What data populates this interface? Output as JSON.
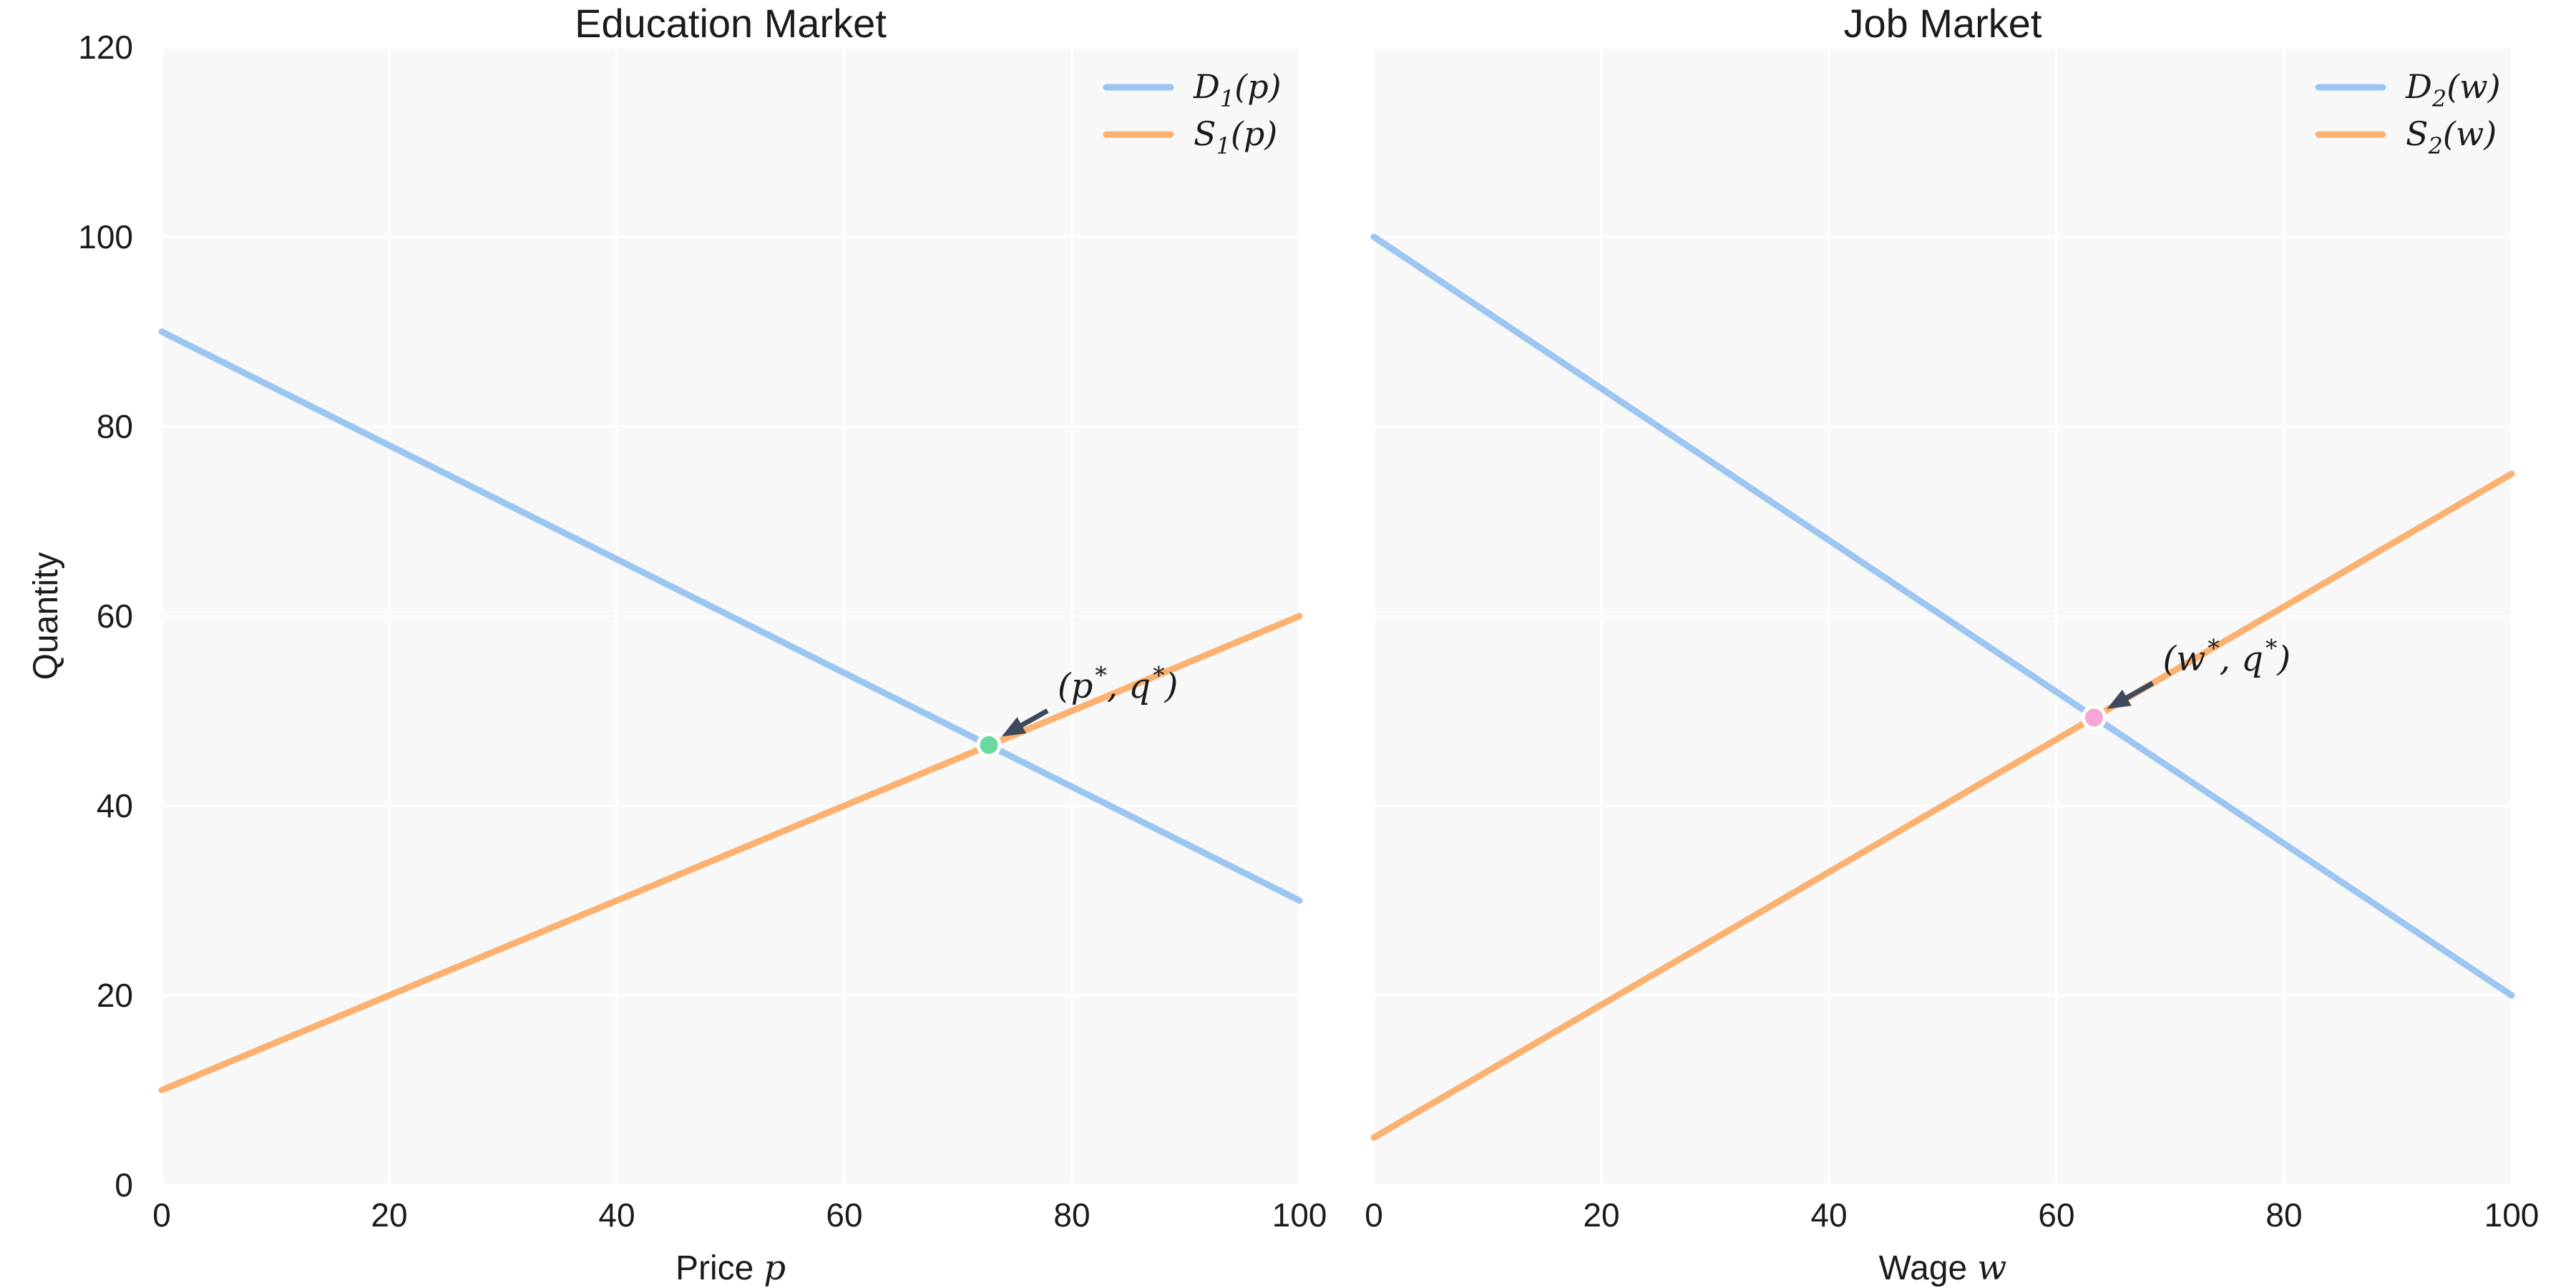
{
  "figure": {
    "bg_color": "#ffffff",
    "axes_bg_color": "#f8f8f8",
    "grid_color": "#ffffff",
    "text_color": "#1b1b1b",
    "arrow_color": "#3e4a5c"
  },
  "chart_data": [
    {
      "type": "line",
      "title": "Education Market",
      "xlabel": {
        "text": "Price",
        "var": "p"
      },
      "ylabel": "Quantity",
      "xlim": [
        0,
        100
      ],
      "ylim": [
        0,
        120
      ],
      "xticks": [
        0,
        20,
        40,
        60,
        80,
        100
      ],
      "yticks": [
        0,
        20,
        40,
        60,
        80,
        100,
        120
      ],
      "show_ytick_labels": true,
      "grid": true,
      "legend_position": "upper right",
      "series": [
        {
          "name": "D1(p)",
          "role": "demand",
          "label_parts": {
            "main": "D",
            "sub": "1",
            "arg": "(p)"
          },
          "color": "#9cc5f2",
          "x": [
            0,
            100
          ],
          "y": [
            90,
            30
          ]
        },
        {
          "name": "S1(p)",
          "role": "supply",
          "label_parts": {
            "main": "S",
            "sub": "1",
            "arg": "(p)"
          },
          "color": "#fbb271",
          "x": [
            0,
            100
          ],
          "y": [
            10,
            60
          ]
        }
      ],
      "equilibrium": {
        "x": 72.7,
        "y": 46.4,
        "dot_color": "#69d9a0",
        "label": "(p*, q*)",
        "label_parts": [
          "(p",
          "*",
          ", q",
          "*",
          ")"
        ]
      }
    },
    {
      "type": "line",
      "title": "Job Market",
      "xlabel": {
        "text": "Wage",
        "var": "w"
      },
      "ylabel": "",
      "xlim": [
        0,
        100
      ],
      "ylim": [
        0,
        120
      ],
      "xticks": [
        0,
        20,
        40,
        60,
        80,
        100
      ],
      "yticks": [
        0,
        20,
        40,
        60,
        80,
        100,
        120
      ],
      "show_ytick_labels": false,
      "grid": true,
      "legend_position": "upper right",
      "series": [
        {
          "name": "D2(w)",
          "role": "demand",
          "label_parts": {
            "main": "D",
            "sub": "2",
            "arg": "(w)"
          },
          "color": "#9cc5f2",
          "x": [
            0,
            100
          ],
          "y": [
            100,
            20
          ]
        },
        {
          "name": "S2(w)",
          "role": "supply",
          "label_parts": {
            "main": "S",
            "sub": "2",
            "arg": "(w)"
          },
          "color": "#fbb271",
          "x": [
            0,
            100
          ],
          "y": [
            5,
            75
          ]
        }
      ],
      "equilibrium": {
        "x": 63.3,
        "y": 49.3,
        "dot_color": "#f7a6d6",
        "label": "(w*, q*)",
        "label_parts": [
          "(w",
          "*",
          ", q",
          "*",
          ")"
        ]
      }
    }
  ]
}
